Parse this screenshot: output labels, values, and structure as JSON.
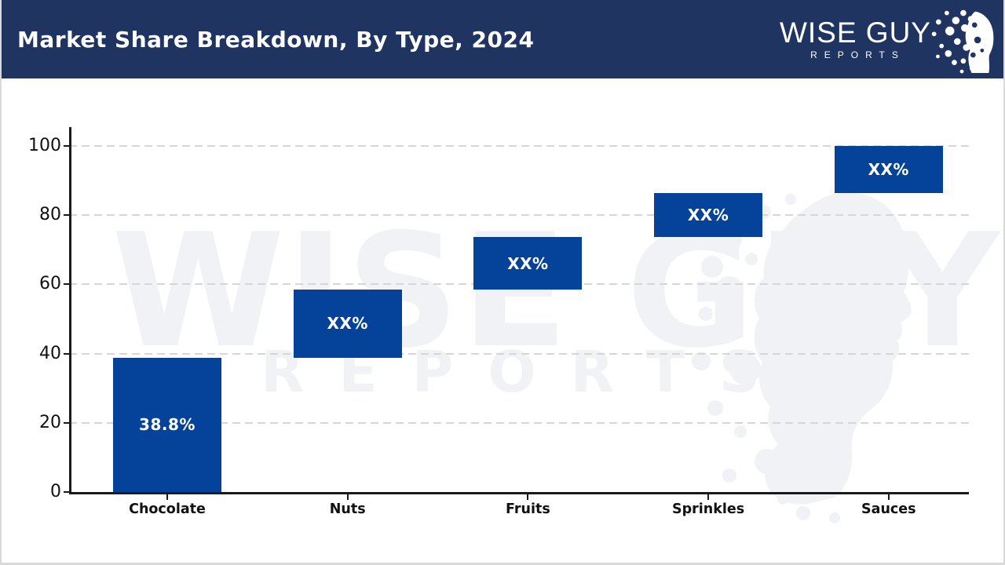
{
  "header": {
    "title": "Market Share Breakdown, By Type, 2024",
    "logo": {
      "line1": "WISE GUY",
      "line2": "REPORTS"
    }
  },
  "watermark": {
    "line1": "WISE GUY",
    "line2": "REPORTS"
  },
  "chart_data": {
    "type": "bar",
    "subtype": "waterfall",
    "title": "Market Share Breakdown, By Type, 2024",
    "categories": [
      "Chocolate",
      "Nuts",
      "Fruits",
      "Sprinkles",
      "Sauces"
    ],
    "segments": [
      {
        "category": "Chocolate",
        "start": 0,
        "end": 38.8,
        "label": "38.8%"
      },
      {
        "category": "Nuts",
        "start": 38.8,
        "end": 58.5,
        "label": "XX%"
      },
      {
        "category": "Fruits",
        "start": 58.5,
        "end": 73.6,
        "label": "XX%"
      },
      {
        "category": "Sprinkles",
        "start": 73.6,
        "end": 86.5,
        "label": "XX%"
      },
      {
        "category": "Sauces",
        "start": 86.5,
        "end": 100,
        "label": "XX%"
      }
    ],
    "ylabel": "",
    "xlabel": "",
    "yticks": [
      0,
      20,
      40,
      60,
      80,
      100
    ],
    "ylim": [
      0,
      100
    ],
    "grid": "horizontal-dashed",
    "legend": "none"
  },
  "colors": {
    "header_bg": "#1f3460",
    "bar": "#05439b",
    "grid": "#d6d6d6",
    "axis": "#1a1a1a",
    "bar_label": "#ffffff",
    "watermark": "#f1f2f5",
    "page_border": "#d9d9d9"
  }
}
